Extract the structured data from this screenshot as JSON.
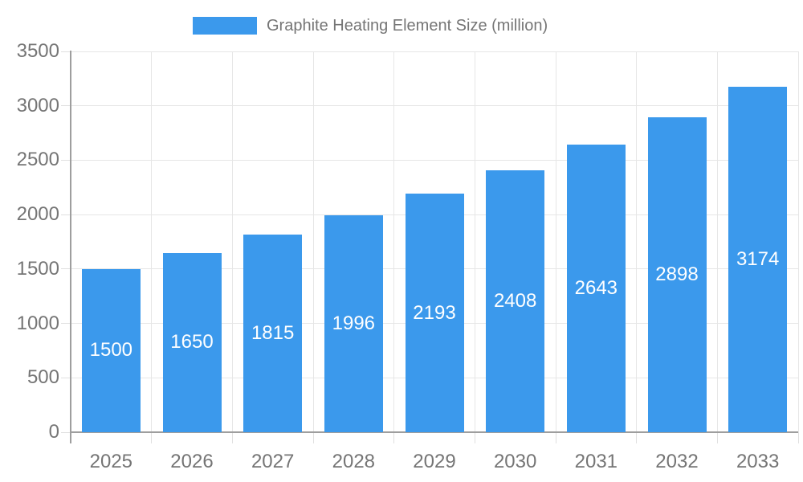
{
  "chart_data": {
    "type": "bar",
    "title": "Graphite Heating Element Size (million)",
    "categories": [
      "2025",
      "2026",
      "2027",
      "2028",
      "2029",
      "2030",
      "2031",
      "2032",
      "2033"
    ],
    "values": [
      1500,
      1650,
      1815,
      1996,
      2193,
      2408,
      2643,
      2898,
      3174
    ],
    "xlabel": "",
    "ylabel": "",
    "ylim": [
      0,
      3500
    ],
    "yticks": [
      0,
      500,
      1000,
      1500,
      2000,
      2500,
      3000,
      3500
    ],
    "grid": true,
    "legend_position": "top-center",
    "colors": {
      "bar": "#3B99EC",
      "value_label": "#FFFFFF",
      "axis_label": "#757575",
      "title_text": "#757575",
      "grid_line": "#E6E6E6",
      "axis_line": "#9E9E9E",
      "tick_mark": "#E0E0E0"
    }
  }
}
